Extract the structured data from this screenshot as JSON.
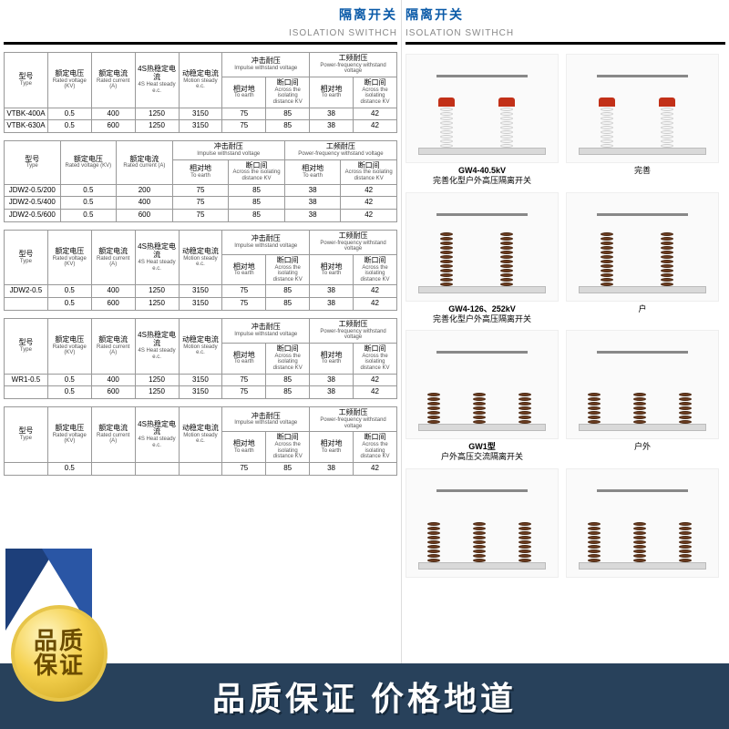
{
  "header_left": {
    "cn": "隔离开关",
    "en": "ISOLATION SWITHCH"
  },
  "header_right": {
    "cn": "隔离开关",
    "en": "ISOLATION SWITHCH"
  },
  "table_colors": {
    "border": "#999999",
    "header_bg": "#ffffff",
    "text": "#000000",
    "sub_text": "#555555"
  },
  "columns_full": [
    {
      "cn": "型号",
      "en": "Type"
    },
    {
      "cn": "额定电压",
      "en": "Rated voltage (KV)"
    },
    {
      "cn": "额定电流",
      "en": "Rated current (A)"
    },
    {
      "cn": "4S热稳定电流",
      "en": "4S Heat steady e.c."
    },
    {
      "cn": "动稳定电流",
      "en": "Motion steady e.c."
    },
    {
      "group_cn": "冲击耐压",
      "group_en": "Impulse withstand voltage",
      "sub": [
        {
          "cn": "相对地",
          "en": "To earth"
        },
        {
          "cn": "断口间",
          "en": "Across the isolating distance KV"
        }
      ]
    },
    {
      "group_cn": "工频耐压",
      "group_en": "Power-frequency withstand voltage",
      "sub": [
        {
          "cn": "相对地",
          "en": "To earth"
        },
        {
          "cn": "断口间",
          "en": "Across the isolating distance KV"
        }
      ]
    }
  ],
  "columns_short": [
    {
      "cn": "型号",
      "en": "Type"
    },
    {
      "cn": "额定电压",
      "en": "Rated voltage (KV)"
    },
    {
      "cn": "额定电流",
      "en": "Rated current (A)"
    },
    {
      "group_cn": "冲击耐压",
      "group_en": "Impulse withstand voltage",
      "sub": [
        {
          "cn": "相对地",
          "en": "To earth"
        },
        {
          "cn": "断口间",
          "en": "Across the isolating distance KV"
        }
      ]
    },
    {
      "group_cn": "工频耐压",
      "group_en": "Power-frequency withstand voltage",
      "sub": [
        {
          "cn": "相对地",
          "en": "To earth"
        },
        {
          "cn": "断口间",
          "en": "Across the isolating distance KV"
        }
      ]
    }
  ],
  "table1_rows": [
    [
      "VTBK-400A",
      "0.5",
      "400",
      "1250",
      "3150",
      "75",
      "85",
      "38",
      "42"
    ],
    [
      "VTBK-630A",
      "0.5",
      "600",
      "1250",
      "3150",
      "75",
      "85",
      "38",
      "42"
    ]
  ],
  "table2_rows": [
    [
      "JDW2-0.5/200",
      "0.5",
      "200",
      "75",
      "85",
      "38",
      "42"
    ],
    [
      "JDW2-0.5/400",
      "0.5",
      "400",
      "75",
      "85",
      "38",
      "42"
    ],
    [
      "JDW2-0.5/600",
      "0.5",
      "600",
      "75",
      "85",
      "38",
      "42"
    ]
  ],
  "table3_rows": [
    [
      "JDW2-0.5",
      "0.5",
      "400",
      "1250",
      "3150",
      "75",
      "85",
      "38",
      "42"
    ],
    [
      "",
      "0.5",
      "600",
      "1250",
      "3150",
      "75",
      "85",
      "38",
      "42"
    ]
  ],
  "table4_rows": [
    [
      "WR1-0.5",
      "0.5",
      "400",
      "1250",
      "3150",
      "75",
      "85",
      "38",
      "42"
    ],
    [
      "",
      "0.5",
      "600",
      "1250",
      "3150",
      "75",
      "85",
      "38",
      "42"
    ]
  ],
  "table5_rows": [
    [
      "",
      "0.5",
      "",
      "",
      "",
      "75",
      "85",
      "38",
      "42"
    ]
  ],
  "products": [
    {
      "title": "GW4-40.5kV",
      "sub": "完善化型户外高压隔离开关",
      "insulator_color": "white",
      "n_ins": 2,
      "discs": 9
    },
    {
      "title": "",
      "sub": "完善",
      "insulator_color": "white",
      "n_ins": 2,
      "discs": 9
    },
    {
      "title": "GW4-126、252kV",
      "sub": "完善化型户外高压隔离开关",
      "insulator_color": "brown",
      "n_ins": 2,
      "discs": 12
    },
    {
      "title": "",
      "sub": "户",
      "insulator_color": "brown",
      "n_ins": 2,
      "discs": 12
    },
    {
      "title": "GW1型",
      "sub": "户外高压交流隔离开关",
      "insulator_color": "brown",
      "n_ins": 3,
      "discs": 7
    },
    {
      "title": "",
      "sub": "户外",
      "insulator_color": "brown",
      "n_ins": 3,
      "discs": 7
    },
    {
      "title": "",
      "sub": "",
      "insulator_color": "brown",
      "n_ins": 3,
      "discs": 9
    },
    {
      "title": "",
      "sub": "",
      "insulator_color": "brown",
      "n_ins": 3,
      "discs": 9
    }
  ],
  "medal": {
    "line1": "品质",
    "line2": "保证"
  },
  "banner": "品质保证  价格地道",
  "palette": {
    "header_cn": "#0a5aa8",
    "header_en": "#888888",
    "header_rule": "#000000",
    "banner_bg": "#28415b",
    "banner_text": "#ffffff",
    "ribbon_dark": "#1d3f7a",
    "ribbon_light": "#2a56a5",
    "coin_light": "#fff6c4",
    "coin_mid": "#f5d14e",
    "coin_dark": "#caa21f",
    "coin_text": "#6a4b00",
    "insulator_white": "#f4f4f4",
    "insulator_brown": "#6b3b1f",
    "topcap_red": "#c23018",
    "base_grey": "#d9d9d9"
  }
}
